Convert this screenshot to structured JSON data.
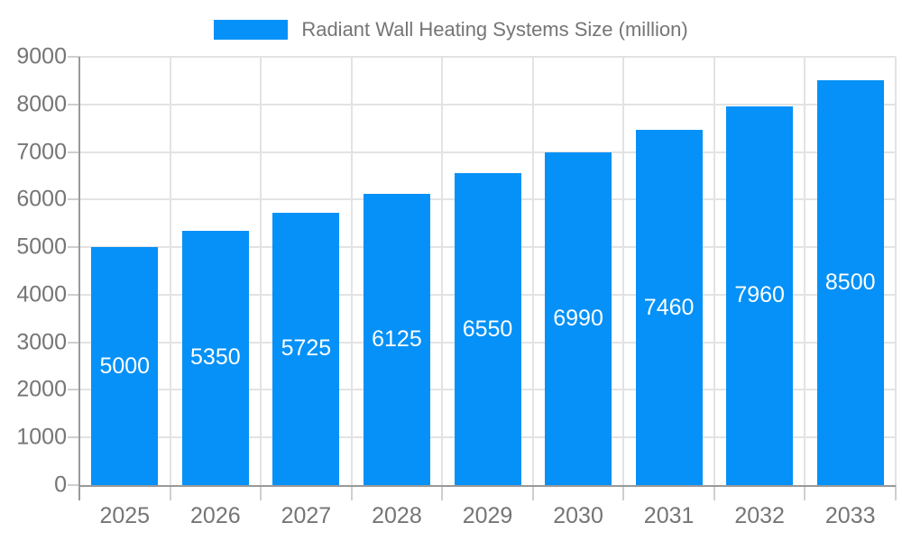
{
  "legend": {
    "label": "Radiant Wall Heating Systems Size (million)",
    "swatch_color": "#0591F7"
  },
  "chart_data": {
    "type": "bar",
    "title": "Radiant Wall Heating Systems Size (million)",
    "categories": [
      "2025",
      "2026",
      "2027",
      "2028",
      "2029",
      "2030",
      "2031",
      "2032",
      "2033"
    ],
    "values": [
      5000,
      5350,
      5725,
      6125,
      6550,
      6990,
      7460,
      7960,
      8500
    ],
    "xlabel": "",
    "ylabel": "",
    "ylim": [
      0,
      9000
    ],
    "ytick_step": 1000,
    "yticks": [
      0,
      1000,
      2000,
      3000,
      4000,
      5000,
      6000,
      7000,
      8000,
      9000
    ],
    "grid": true,
    "legend_position": "top-center",
    "bar_color": "#0591F7",
    "value_label_color": "#FFFFFF",
    "axis_text_color": "#757575",
    "gridline_color": "#e3e3e3",
    "axis_line_color": "#999999"
  }
}
